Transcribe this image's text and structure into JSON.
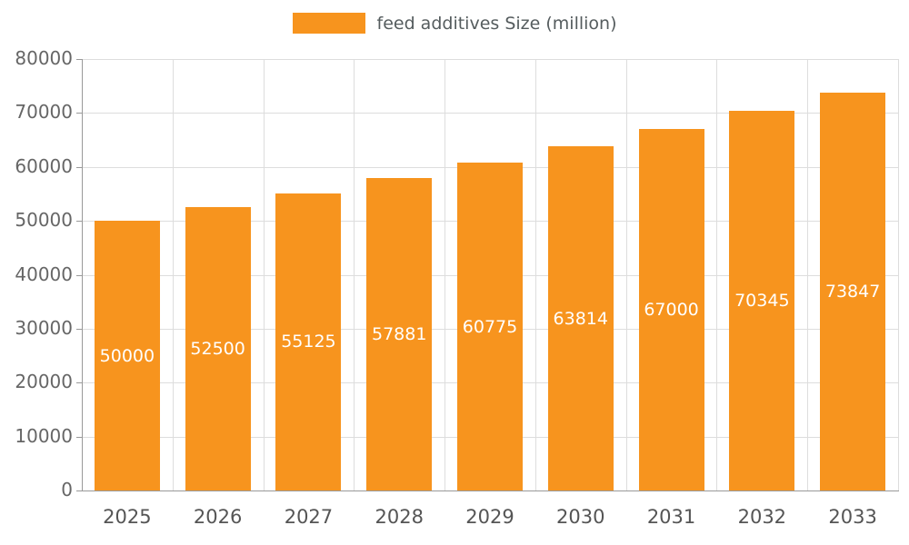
{
  "chart_data": {
    "type": "bar",
    "title": "feed additives Size (million)",
    "categories": [
      "2025",
      "2026",
      "2027",
      "2028",
      "2029",
      "2030",
      "2031",
      "2032",
      "2033"
    ],
    "values": [
      50000,
      52500,
      55125,
      57881,
      60775,
      63814,
      67000,
      70345,
      73847
    ],
    "xlabel": "",
    "ylabel": "",
    "ylim": [
      0,
      80000
    ],
    "ytick_step": 10000,
    "grid": true,
    "legend_position": "top",
    "bar_color": "#f7941e",
    "value_label_color": "#ffffff",
    "value_labels_shown": true
  },
  "legend": {
    "label": "feed additives Size (million)",
    "swatch_color": "#f7941e"
  }
}
